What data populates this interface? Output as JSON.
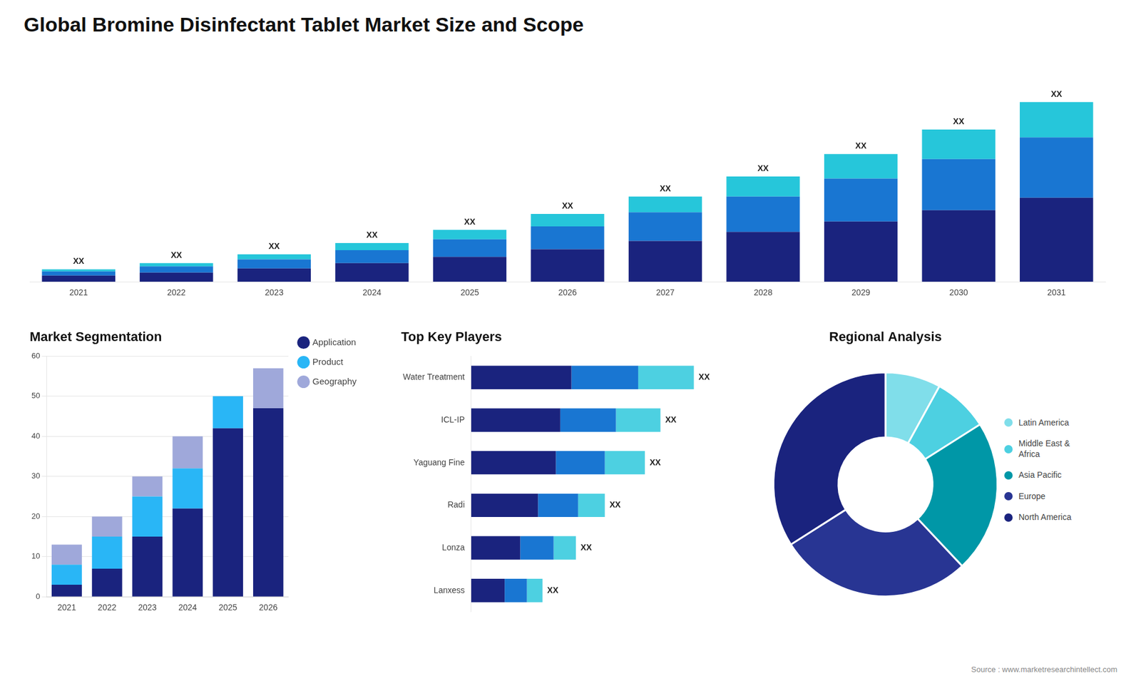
{
  "title": "Global Bromine Disinfectant Tablet Market Size and Scope",
  "annotations": [
    "Source : www.marketresearchintellect.com"
  ],
  "chart_data": [
    {
      "type": "bar",
      "stacked": true,
      "categories": [
        "2021",
        "2022",
        "2023",
        "2024",
        "2025",
        "2026",
        "2027",
        "2028",
        "2029",
        "2030",
        "2031"
      ],
      "series": [
        {
          "color": "#1a237e",
          "values": [
            1.5,
            2.2,
            3.2,
            4.5,
            6.0,
            7.8,
            9.8,
            12.0,
            14.5,
            17.2,
            20.2
          ]
        },
        {
          "color": "#1976d2",
          "values": [
            1.0,
            1.5,
            2.2,
            3.1,
            4.2,
            5.5,
            6.9,
            8.5,
            10.3,
            12.3,
            14.5
          ]
        },
        {
          "color": "#26c6da",
          "values": [
            0.5,
            0.8,
            1.2,
            1.7,
            2.3,
            3.0,
            3.8,
            4.8,
            5.9,
            7.1,
            8.5
          ]
        }
      ],
      "ylim": [
        0,
        56.16
      ],
      "tick_labels": "x",
      "grid": false,
      "annotations": [
        "XX",
        "XX",
        "XX",
        "XX",
        "XX",
        "XX",
        "XX",
        "XX",
        "XX",
        "XX",
        "XX"
      ]
    },
    {
      "type": "bar",
      "title": "Market Segmentation",
      "stacked": true,
      "categories": [
        "2021",
        "2022",
        "2023",
        "2024",
        "2025",
        "2026"
      ],
      "series": [
        {
          "name": "Application",
          "color": "#1a237e",
          "values": [
            3,
            7,
            15,
            22,
            42,
            47
          ]
        },
        {
          "name": "Product",
          "color": "#29b6f6",
          "values": [
            5,
            8,
            10,
            10,
            8,
            0
          ]
        },
        {
          "name": "Geography",
          "color": "#9fa8da",
          "values": [
            5,
            5,
            5,
            8,
            0,
            10
          ]
        }
      ],
      "ylim": [
        0,
        60
      ],
      "yticks": [
        0,
        10,
        20,
        30,
        40,
        50,
        60
      ],
      "grid": true,
      "legend": "right"
    },
    {
      "type": "bar",
      "title": "Top Key Players",
      "orientation": "horizontal",
      "stacked": true,
      "categories": [
        "Water Treatment",
        "ICL-IP",
        "Yaguang Fine",
        "Radi",
        "Lonza",
        "Lanxess"
      ],
      "series": [
        {
          "color": "#1a237e",
          "values": [
            4.5,
            4.0,
            3.8,
            3.0,
            2.2,
            1.5
          ]
        },
        {
          "color": "#1976d2",
          "values": [
            3.0,
            2.5,
            2.2,
            1.8,
            1.5,
            1.0
          ]
        },
        {
          "color": "#4dd0e1",
          "values": [
            2.5,
            2.0,
            1.8,
            1.2,
            1.0,
            0.7
          ]
        }
      ],
      "xlim": [
        0,
        11.8
      ],
      "tick_labels": "y",
      "grid": false,
      "annotations": [
        "XX",
        "XX",
        "XX",
        "XX",
        "XX",
        "XX"
      ]
    },
    {
      "type": "doughnut",
      "title": "Regional Analysis",
      "categories": [
        "Latin America",
        "Middle East &\nAfrica",
        "Asia Pacific",
        "Europe",
        "North America"
      ],
      "values": [
        8,
        8,
        22,
        28,
        34
      ],
      "colors": [
        "#80deea",
        "#4dd0e1",
        "#0097a7",
        "#283593",
        "#1a237e"
      ],
      "legend": "right"
    }
  ]
}
